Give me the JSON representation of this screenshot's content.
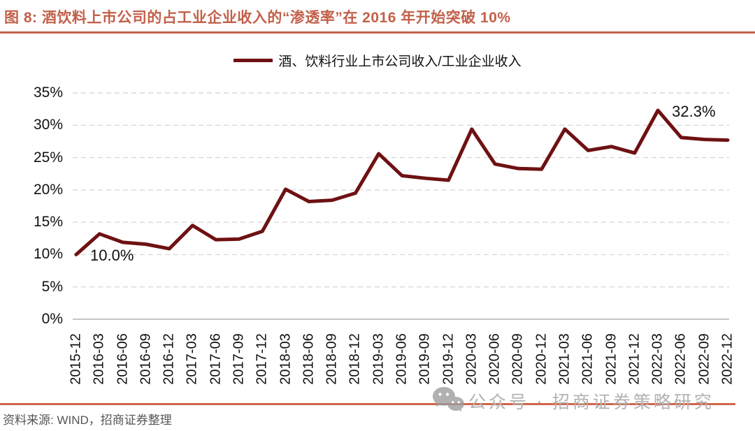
{
  "figure": {
    "title": "图 8: 酒饮料上市公司的占工业企业收入的“渗透率”在 2016 年开始突破 10%",
    "source_note": "资料来源: WIND，招商证券整理",
    "watermark": "公众号 · 招商证券策略研究",
    "watermark_icon": "wechat-icon",
    "accent_color": "#C2604A",
    "footer_rule_color": "#D2654A"
  },
  "chart_data": {
    "type": "line",
    "title": "",
    "xlabel": "",
    "ylabel": "",
    "legend_position": "top-center",
    "grid": "horizontal-dashed",
    "ylim": [
      0,
      35
    ],
    "yticks": [
      "35%",
      "30%",
      "25%",
      "20%",
      "15%",
      "10%",
      "5%",
      "0%"
    ],
    "ytick_values": [
      35,
      30,
      25,
      20,
      15,
      10,
      5,
      0
    ],
    "x": [
      "2015-12",
      "2016-03",
      "2016-06",
      "2016-09",
      "2016-12",
      "2017-03",
      "2017-06",
      "2017-09",
      "2017-12",
      "2018-03",
      "2018-06",
      "2018-09",
      "2018-12",
      "2019-03",
      "2019-06",
      "2019-09",
      "2019-12",
      "2020-03",
      "2020-06",
      "2020-09",
      "2020-12",
      "2021-03",
      "2021-06",
      "2021-09",
      "2021-12",
      "2022-03",
      "2022-06",
      "2022-09",
      "2022-12"
    ],
    "series": [
      {
        "name": "酒、饮料行业上市公司收入/工业企业收入",
        "values": [
          10.0,
          13.2,
          11.9,
          11.6,
          10.9,
          14.5,
          12.3,
          12.4,
          13.6,
          20.1,
          18.2,
          18.4,
          19.5,
          25.6,
          22.2,
          21.8,
          21.5,
          29.4,
          24.0,
          23.3,
          23.2,
          29.4,
          26.1,
          26.7,
          25.7,
          32.3,
          28.1,
          27.8,
          27.7
        ]
      }
    ],
    "annotations": [
      {
        "x": "2015-12",
        "text": "10.0%"
      },
      {
        "x": "2022-03",
        "text": "32.3%"
      }
    ],
    "line_color": "#6E1113",
    "gridline_color": "#d9d9d9",
    "axis_line_color": "#b3b3b3"
  }
}
